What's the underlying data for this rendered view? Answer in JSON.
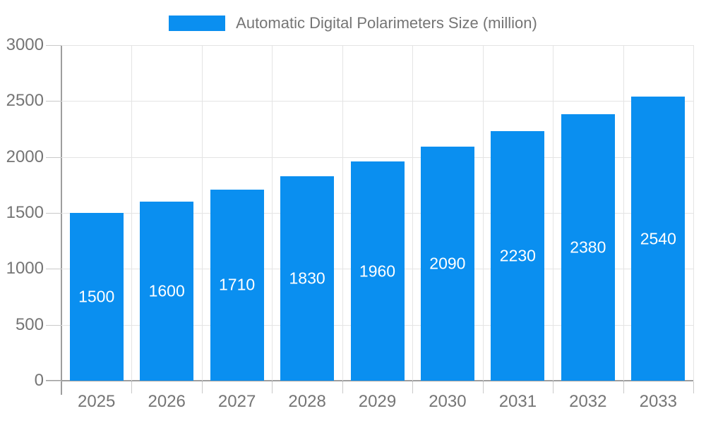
{
  "chart_data": {
    "type": "bar",
    "series_name": "Automatic Digital Polarimeters Size (million)",
    "categories": [
      "2025",
      "2026",
      "2027",
      "2028",
      "2029",
      "2030",
      "2031",
      "2032",
      "2033"
    ],
    "values": [
      1500,
      1600,
      1710,
      1830,
      1960,
      2090,
      2230,
      2380,
      2540
    ],
    "title": "",
    "xlabel": "",
    "ylabel": "",
    "ylim": [
      0,
      3000
    ],
    "yticks": [
      0,
      500,
      1000,
      1500,
      2000,
      2500,
      3000
    ],
    "grid": true,
    "legend_position": "top-center",
    "value_labels": "inside-middle"
  },
  "colors": {
    "bar": "#0a8ff0",
    "bar_label": "#ffffff",
    "axis_line": "#9e9e9e",
    "grid_line": "#e4e4e4",
    "tick_line": "#c9c9c9",
    "axis_text": "#757575",
    "legend_text": "#757575",
    "background": "#ffffff"
  }
}
